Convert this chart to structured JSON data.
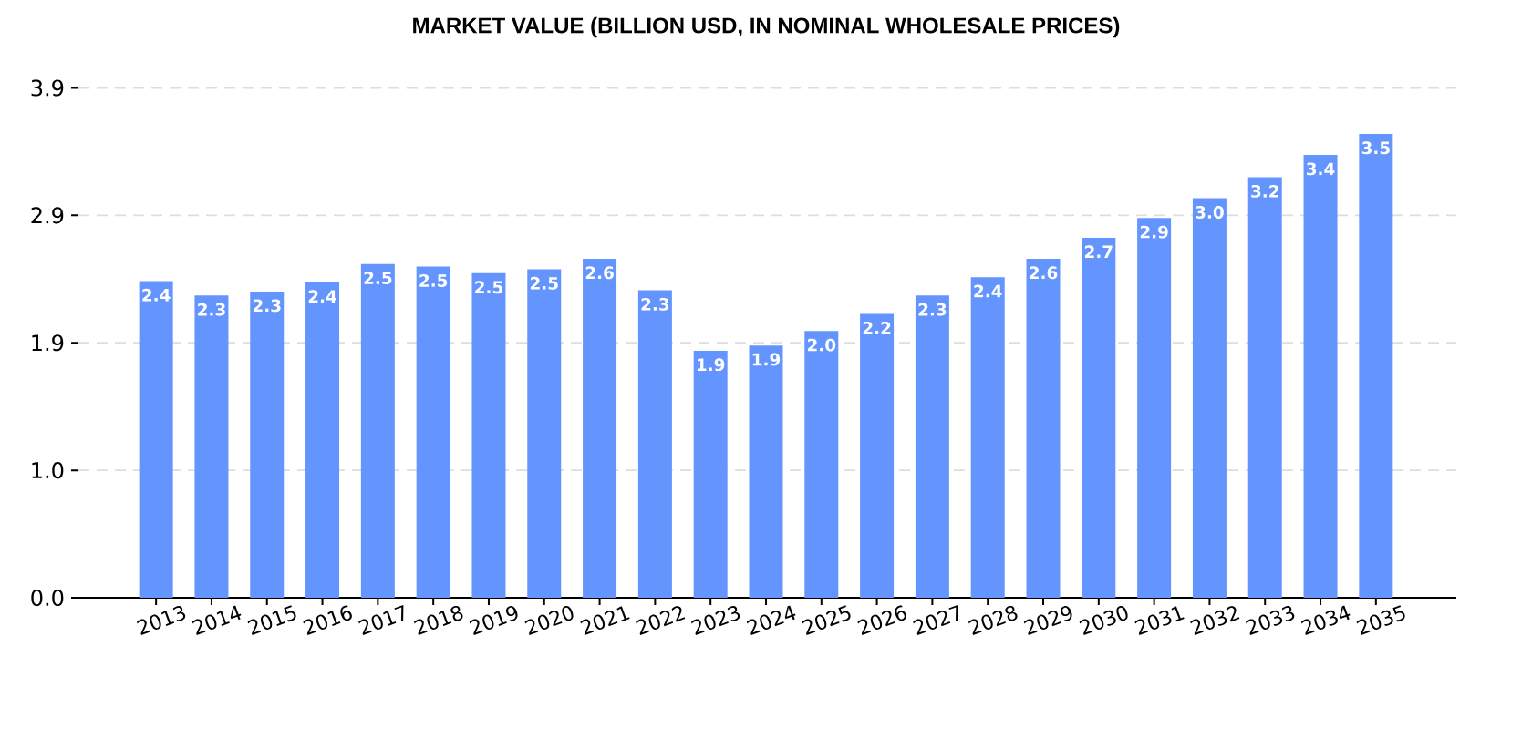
{
  "chart_data": {
    "type": "bar",
    "title": "MARKET VALUE (BILLION USD, IN NOMINAL WHOLESALE PRICES)",
    "categories": [
      "2013",
      "2014",
      "2015",
      "2016",
      "2017",
      "2018",
      "2019",
      "2020",
      "2021",
      "2022",
      "2023",
      "2024",
      "2025",
      "2026",
      "2027",
      "2028",
      "2029",
      "2030",
      "2031",
      "2032",
      "2033",
      "2034",
      "2035"
    ],
    "values": [
      2.41,
      2.3,
      2.33,
      2.4,
      2.54,
      2.52,
      2.47,
      2.5,
      2.58,
      2.34,
      1.88,
      1.92,
      2.03,
      2.16,
      2.3,
      2.44,
      2.58,
      2.74,
      2.89,
      3.04,
      3.2,
      3.37,
      3.53
    ],
    "value_labels": [
      "2.4",
      "2.3",
      "2.3",
      "2.4",
      "2.5",
      "2.5",
      "2.5",
      "2.5",
      "2.6",
      "2.3",
      "1.9",
      "1.9",
      "2.0",
      "2.2",
      "2.3",
      "2.4",
      "2.6",
      "2.7",
      "2.9",
      "3.0",
      "3.2",
      "3.4",
      "3.5"
    ],
    "color": "#6494fe",
    "ylim": [
      0,
      3.88
    ],
    "yticks": [
      {
        "value": 0,
        "label": "0.0"
      },
      {
        "value": 0.97,
        "label": "1.0"
      },
      {
        "value": 1.94,
        "label": "1.9"
      },
      {
        "value": 2.91,
        "label": "2.9"
      },
      {
        "value": 3.88,
        "label": "3.9"
      }
    ],
    "grid": "y"
  }
}
